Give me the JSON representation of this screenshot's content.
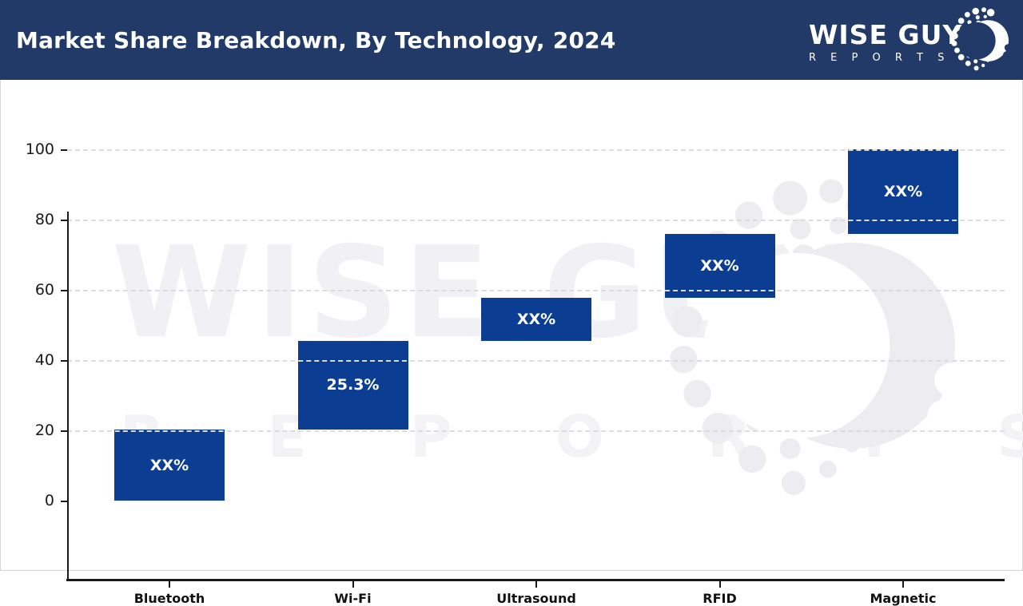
{
  "header": {
    "title": "Market Share Breakdown, By Technology, 2024",
    "bg_color": "#213a67",
    "brand_line1": "WISE GUY",
    "brand_line2": "R E P O R T S"
  },
  "watermark": {
    "line1": "WISE GUY",
    "line2": "R E P O R T S"
  },
  "chart_data": {
    "type": "bar",
    "subtype": "waterfall-floating-bars",
    "title": "Market Share Breakdown, By Technology, 2024",
    "xlabel": "",
    "ylabel": "",
    "ylim": [
      0,
      105
    ],
    "yticks": [
      0,
      20,
      40,
      60,
      80,
      100
    ],
    "grid": "horizontal-dashed",
    "grid_color": "#dcdcdc",
    "bar_color": "#0b3e92",
    "label_color": "#ffffff",
    "categories": [
      "Bluetooth",
      "Wi-Fi",
      "Ultrasound",
      "RFID",
      "Magnetic"
    ],
    "bars": [
      {
        "category": "Bluetooth",
        "start": 0,
        "end": 20.2,
        "value": 20.2,
        "label": "XX%"
      },
      {
        "category": "Wi-Fi",
        "start": 20.2,
        "end": 45.5,
        "value": 25.3,
        "label": "25.3%"
      },
      {
        "category": "Ultrasound",
        "start": 45.5,
        "end": 57.8,
        "value": 12.3,
        "label": "XX%"
      },
      {
        "category": "RFID",
        "start": 57.8,
        "end": 75.9,
        "value": 18.1,
        "label": "XX%"
      },
      {
        "category": "Magnetic",
        "start": 75.9,
        "end": 100,
        "value": 24.1,
        "label": "XX%"
      }
    ]
  }
}
